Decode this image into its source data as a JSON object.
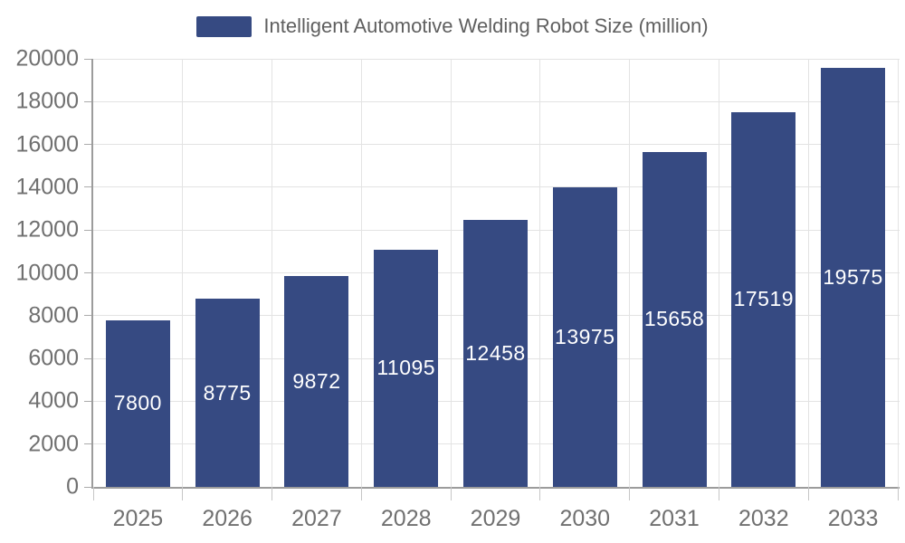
{
  "legend": {
    "label": "Intelligent Automotive Welding Robot Size (million)"
  },
  "chart_data": {
    "type": "bar",
    "title": "Intelligent Automotive Welding Robot Size (million)",
    "legend_entries": [
      "Intelligent Automotive Welding Robot Size (million)"
    ],
    "legend_position": "top",
    "categories": [
      "2025",
      "2026",
      "2027",
      "2028",
      "2029",
      "2030",
      "2031",
      "2032",
      "2033"
    ],
    "values": [
      7800,
      8775,
      9872,
      11095,
      12458,
      13975,
      15658,
      17519,
      19575
    ],
    "xlabel": "",
    "ylabel": "",
    "ylim": [
      0,
      20000
    ],
    "ytick_step": 2000,
    "grid": true,
    "value_label_position": "center",
    "colors": {
      "bar": "#364A82",
      "grid": "#E3E3E3",
      "axis": "#9C9C9C",
      "y_tick": "#ABABAB",
      "x_tick": "#C6C6C6",
      "axis_label": "#707070",
      "legend_text": "#5F5F5F",
      "value_label": "#FFFFFF"
    }
  }
}
